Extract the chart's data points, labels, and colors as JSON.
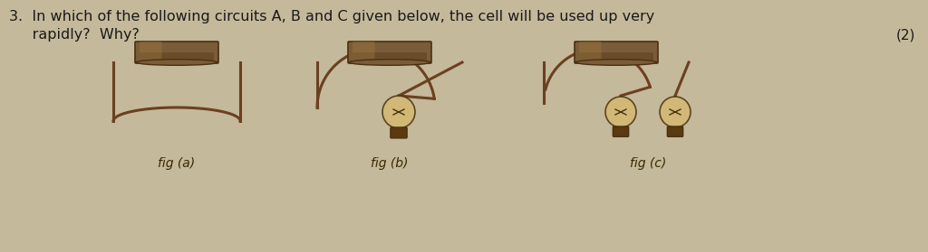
{
  "background_color": "#c4b99a",
  "question_text_line1": "3.  In which of the following circuits A, B and C given below, the cell will be used up very",
  "question_text_line2": "     rapidly?  Why?",
  "marks": "(2)",
  "fig_labels": [
    "fig (a)",
    "fig (b)",
    "fig (c)"
  ],
  "fig_label_fontsize": 10,
  "text_fontsize": 11.5,
  "marks_fontsize": 11,
  "text_color": "#1a1a1a",
  "wire_color": "#6b4020",
  "battery_main_color": "#7a5c38",
  "battery_dark_color": "#4a3010",
  "battery_light_color": "#a07840",
  "bulb_glass_color": "#d4b870",
  "bulb_base_color": "#5a3a10",
  "label_color": "#3a2800"
}
